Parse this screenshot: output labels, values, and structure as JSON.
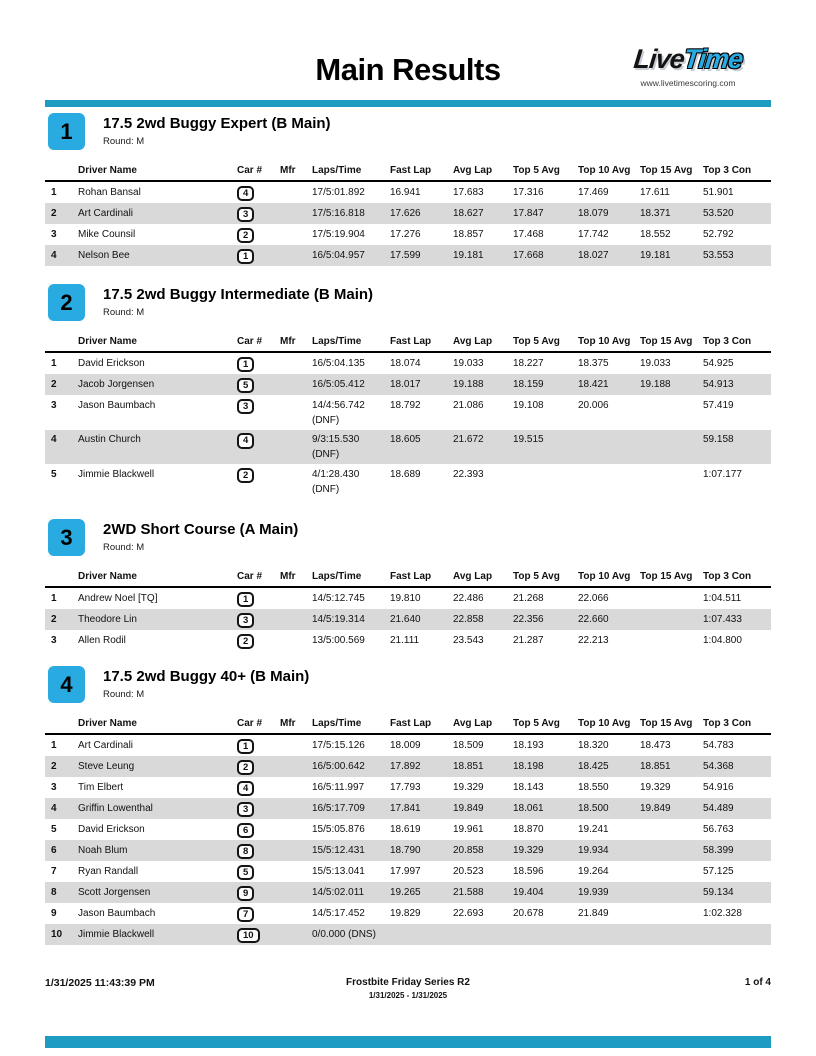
{
  "colors": {
    "accent_rule": "#1e9bc0",
    "badge": "#29abe2",
    "row_stripe": "#d9d9d9"
  },
  "header": {
    "title": "Main Results",
    "logo": {
      "live": "Live",
      "time": "Time",
      "url": "www.livetimescoring.com"
    }
  },
  "columns": [
    "Driver Name",
    "Car #",
    "Mfr",
    "Laps/Time",
    "Fast Lap",
    "Avg Lap",
    "Top 5 Avg",
    "Top 10 Avg",
    "Top 15 Avg",
    "Top 3 Con"
  ],
  "sections": [
    {
      "num": "1",
      "title": "17.5 2wd Buggy Expert (B Main)",
      "round": "Round: M",
      "rows": [
        {
          "pos": "1",
          "driver": "Rohan Bansal",
          "car": "4",
          "mfr": "",
          "laps": "17/5:01.892",
          "fast": "16.941",
          "avg": "17.683",
          "top5": "17.316",
          "top10": "17.469",
          "top15": "17.611",
          "top3": "51.901"
        },
        {
          "pos": "2",
          "driver": "Art Cardinali",
          "car": "3",
          "mfr": "",
          "laps": "17/5:16.818",
          "fast": "17.626",
          "avg": "18.627",
          "top5": "17.847",
          "top10": "18.079",
          "top15": "18.371",
          "top3": "53.520"
        },
        {
          "pos": "3",
          "driver": "Mike Counsil",
          "car": "2",
          "mfr": "",
          "laps": "17/5:19.904",
          "fast": "17.276",
          "avg": "18.857",
          "top5": "17.468",
          "top10": "17.742",
          "top15": "18.552",
          "top3": "52.792"
        },
        {
          "pos": "4",
          "driver": "Nelson Bee",
          "car": "1",
          "mfr": "",
          "laps": "16/5:04.957",
          "fast": "17.599",
          "avg": "19.181",
          "top5": "17.668",
          "top10": "18.027",
          "top15": "19.181",
          "top3": "53.553"
        }
      ]
    },
    {
      "num": "2",
      "title": "17.5 2wd Buggy Intermediate (B Main)",
      "round": "Round: M",
      "rows": [
        {
          "pos": "1",
          "driver": "David Erickson",
          "car": "1",
          "mfr": "",
          "laps": "16/5:04.135",
          "fast": "18.074",
          "avg": "19.033",
          "top5": "18.227",
          "top10": "18.375",
          "top15": "19.033",
          "top3": "54.925"
        },
        {
          "pos": "2",
          "driver": "Jacob Jorgensen",
          "car": "5",
          "mfr": "",
          "laps": "16/5:05.412",
          "fast": "18.017",
          "avg": "19.188",
          "top5": "18.159",
          "top10": "18.421",
          "top15": "19.188",
          "top3": "54.913"
        },
        {
          "pos": "3",
          "driver": "Jason Baumbach",
          "car": "3",
          "mfr": "",
          "laps": "14/4:56.742\n(DNF)",
          "fast": "18.792",
          "avg": "21.086",
          "top5": "19.108",
          "top10": "20.006",
          "top15": "",
          "top3": "57.419"
        },
        {
          "pos": "4",
          "driver": "Austin Church",
          "car": "4",
          "mfr": "",
          "laps": "9/3:15.530\n(DNF)",
          "fast": "18.605",
          "avg": "21.672",
          "top5": "19.515",
          "top10": "",
          "top15": "",
          "top3": "59.158"
        },
        {
          "pos": "5",
          "driver": "Jimmie Blackwell",
          "car": "2",
          "mfr": "",
          "laps": "4/1:28.430\n(DNF)",
          "fast": "18.689",
          "avg": "22.393",
          "top5": "",
          "top10": "",
          "top15": "",
          "top3": "1:07.177"
        }
      ]
    },
    {
      "num": "3",
      "title": "2WD Short Course (A Main)",
      "round": "Round: M",
      "rows": [
        {
          "pos": "1",
          "driver": "Andrew Noel [TQ]",
          "car": "1",
          "mfr": "",
          "laps": "14/5:12.745",
          "fast": "19.810",
          "avg": "22.486",
          "top5": "21.268",
          "top10": "22.066",
          "top15": "",
          "top3": "1:04.511"
        },
        {
          "pos": "2",
          "driver": "Theodore Lin",
          "car": "3",
          "mfr": "",
          "laps": "14/5:19.314",
          "fast": "21.640",
          "avg": "22.858",
          "top5": "22.356",
          "top10": "22.660",
          "top15": "",
          "top3": "1:07.433"
        },
        {
          "pos": "3",
          "driver": "Allen Rodil",
          "car": "2",
          "mfr": "",
          "laps": "13/5:00.569",
          "fast": "21.111",
          "avg": "23.543",
          "top5": "21.287",
          "top10": "22.213",
          "top15": "",
          "top3": "1:04.800"
        }
      ]
    },
    {
      "num": "4",
      "title": "17.5 2wd Buggy 40+ (B Main)",
      "round": "Round: M",
      "rows": [
        {
          "pos": "1",
          "driver": "Art Cardinali",
          "car": "1",
          "mfr": "",
          "laps": "17/5:15.126",
          "fast": "18.009",
          "avg": "18.509",
          "top5": "18.193",
          "top10": "18.320",
          "top15": "18.473",
          "top3": "54.783"
        },
        {
          "pos": "2",
          "driver": "Steve Leung",
          "car": "2",
          "mfr": "",
          "laps": "16/5:00.642",
          "fast": "17.892",
          "avg": "18.851",
          "top5": "18.198",
          "top10": "18.425",
          "top15": "18.851",
          "top3": "54.368"
        },
        {
          "pos": "3",
          "driver": "Tim Elbert",
          "car": "4",
          "mfr": "",
          "laps": "16/5:11.997",
          "fast": "17.793",
          "avg": "19.329",
          "top5": "18.143",
          "top10": "18.550",
          "top15": "19.329",
          "top3": "54.916"
        },
        {
          "pos": "4",
          "driver": "Griffin Lowenthal",
          "car": "3",
          "mfr": "",
          "laps": "16/5:17.709",
          "fast": "17.841",
          "avg": "19.849",
          "top5": "18.061",
          "top10": "18.500",
          "top15": "19.849",
          "top3": "54.489"
        },
        {
          "pos": "5",
          "driver": "David Erickson",
          "car": "6",
          "mfr": "",
          "laps": "15/5:05.876",
          "fast": "18.619",
          "avg": "19.961",
          "top5": "18.870",
          "top10": "19.241",
          "top15": "",
          "top3": "56.763"
        },
        {
          "pos": "6",
          "driver": "Noah Blum",
          "car": "8",
          "mfr": "",
          "laps": "15/5:12.431",
          "fast": "18.790",
          "avg": "20.858",
          "top5": "19.329",
          "top10": "19.934",
          "top15": "",
          "top3": "58.399"
        },
        {
          "pos": "7",
          "driver": "Ryan Randall",
          "car": "5",
          "mfr": "",
          "laps": "15/5:13.041",
          "fast": "17.997",
          "avg": "20.523",
          "top5": "18.596",
          "top10": "19.264",
          "top15": "",
          "top3": "57.125"
        },
        {
          "pos": "8",
          "driver": "Scott Jorgensen",
          "car": "9",
          "mfr": "",
          "laps": "14/5:02.011",
          "fast": "19.265",
          "avg": "21.588",
          "top5": "19.404",
          "top10": "19.939",
          "top15": "",
          "top3": "59.134"
        },
        {
          "pos": "9",
          "driver": "Jason Baumbach",
          "car": "7",
          "mfr": "",
          "laps": "14/5:17.452",
          "fast": "19.829",
          "avg": "22.693",
          "top5": "20.678",
          "top10": "21.849",
          "top15": "",
          "top3": "1:02.328"
        },
        {
          "pos": "10",
          "driver": "Jimmie Blackwell",
          "car": "10",
          "mfr": "",
          "laps": "0/0.000 (DNS)",
          "fast": "",
          "avg": "",
          "top5": "",
          "top10": "",
          "top15": "",
          "top3": ""
        }
      ]
    }
  ],
  "footer": {
    "timestamp": "1/31/2025 11:43:39 PM",
    "series": "Frostbite Friday Series R2",
    "dates": "1/31/2025 - 1/31/2025",
    "page": "1 of 4"
  }
}
